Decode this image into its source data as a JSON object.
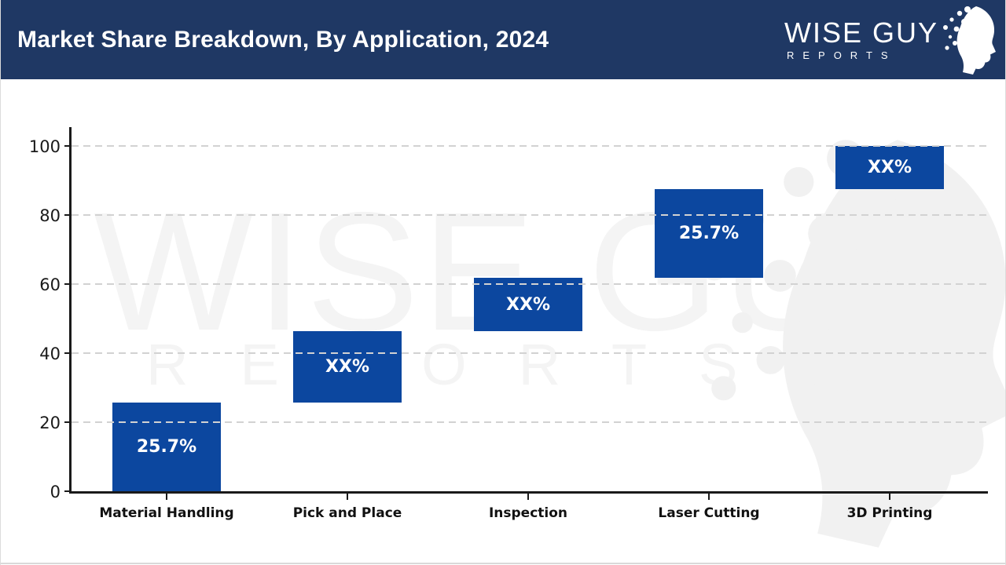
{
  "header": {
    "title": "Market Share Breakdown, By Application, 2024",
    "bg_color": "#1f3864",
    "logo": {
      "line1": "WISE GUY",
      "line2": "REPORTS"
    }
  },
  "watermark": {
    "line1": "WISE GUY",
    "line2": "REPORTS"
  },
  "chart_data": {
    "type": "bar",
    "subtype": "waterfall",
    "title": "Market Share Breakdown, By Application, 2024",
    "xlabel": "",
    "ylabel": "",
    "categories": [
      "Material Handling",
      "Pick and Place",
      "Inspection",
      "Laser Cutting",
      "3D Printing"
    ],
    "bars": [
      {
        "category": "Material Handling",
        "start": 0,
        "end": 25.7,
        "value": 25.7,
        "label": "25.7%"
      },
      {
        "category": "Pick and Place",
        "start": 25.7,
        "end": 46.3,
        "value": 20.6,
        "label": "XX%"
      },
      {
        "category": "Inspection",
        "start": 46.3,
        "end": 61.8,
        "value": 15.5,
        "label": "XX%"
      },
      {
        "category": "Laser Cutting",
        "start": 61.8,
        "end": 87.5,
        "value": 25.7,
        "label": "25.7%"
      },
      {
        "category": "3D Printing",
        "start": 87.5,
        "end": 100,
        "value": 12.5,
        "label": "XX%"
      }
    ],
    "yticks": [
      0,
      20,
      40,
      60,
      80,
      100
    ],
    "ylim": [
      0,
      100
    ],
    "grid": true,
    "grid_style": "dashed",
    "legend": "none",
    "colors": {
      "bar": "#0c479f",
      "bar_label": "#ffffff",
      "grid": "#d2d2d2",
      "axis": "#1a1a1a",
      "tick_label": "#1a1a1a"
    }
  }
}
